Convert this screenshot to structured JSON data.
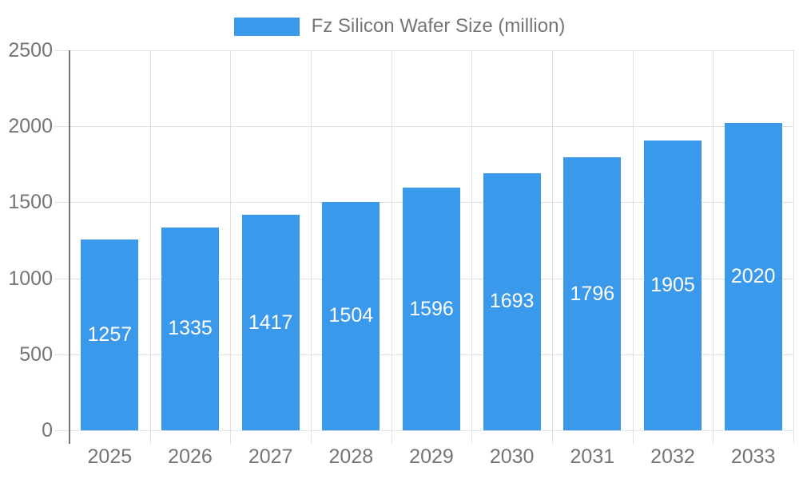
{
  "legend": {
    "label": "Fz Silicon Wafer Size (million)"
  },
  "chart_data": {
    "type": "bar",
    "title": "Fz Silicon Wafer Size (million)",
    "categories": [
      "2025",
      "2026",
      "2027",
      "2028",
      "2029",
      "2030",
      "2031",
      "2032",
      "2033"
    ],
    "series": [
      {
        "name": "Fz Silicon Wafer Size (million)",
        "values": [
          1257,
          1335,
          1417,
          1504,
          1596,
          1693,
          1796,
          1905,
          2020
        ]
      }
    ],
    "value_labels_shown": true,
    "xlabel": "",
    "ylabel": "",
    "ylim": [
      0,
      2500
    ],
    "yticks": [
      0,
      500,
      1000,
      1500,
      2000,
      2500
    ],
    "grid": true,
    "legend_position": "top",
    "colors": {
      "bar": "#3b99ec",
      "value_label": "#ffffff",
      "axis_text": "#757575",
      "grid": "#e0e0e0",
      "axis_line": "#777777",
      "background": "#ffffff"
    }
  }
}
